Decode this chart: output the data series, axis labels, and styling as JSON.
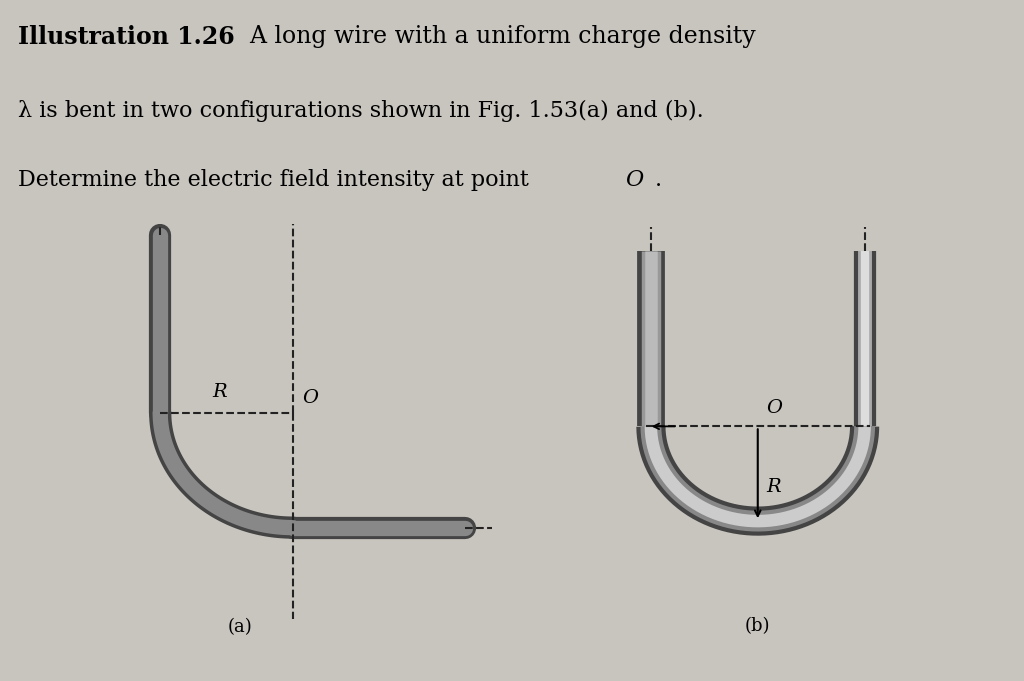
{
  "title_bold": "Illustration 1.26",
  "title_rest": "  A long wire with a uniform charge density",
  "line2": "λ is bent in two configurations shown in Fig. 1.53(a) and (b).",
  "line3a": "Determine the electric field intensity at point ",
  "line3b": "O",
  "line3c": ".",
  "header_bg": "#b8b8b8",
  "body_bg": "#c8c4be",
  "wire_gray": "#888888",
  "wire_dark": "#444444",
  "wire_light": "#aaaaaa",
  "wire_right_light": "#bbbbbb",
  "dashed_color": "#222222",
  "label_R": "R",
  "label_O_a": "O",
  "label_O_b": "O",
  "label_R_b": "R",
  "label_a": "(a)",
  "label_b": "(b)",
  "figsize": [
    10.24,
    6.81
  ],
  "dpi": 100
}
